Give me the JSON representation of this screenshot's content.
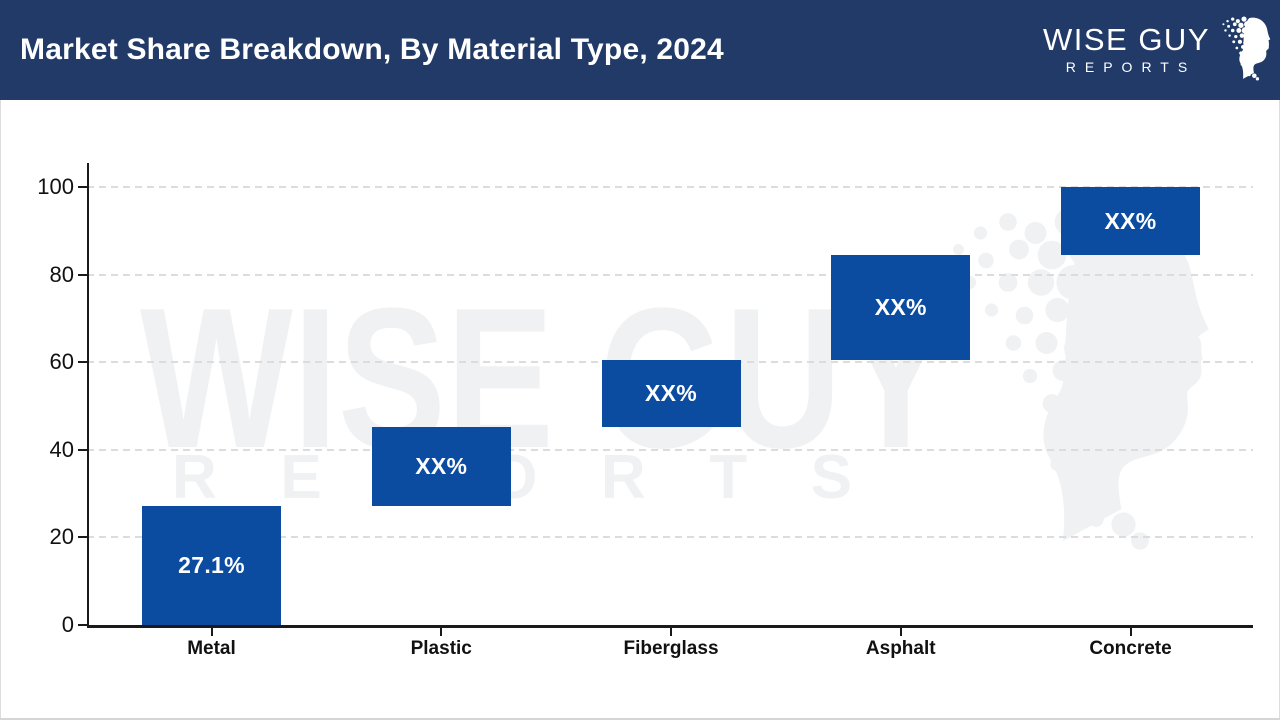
{
  "header": {
    "title": "Market Share Breakdown, By Material Type, 2024",
    "logo": {
      "line1": "WISE GUY",
      "line2": "REPORTS"
    }
  },
  "watermark": {
    "line1": "WISE GUY",
    "line2": "REPORTS"
  },
  "chart_data": {
    "type": "bar",
    "subtype": "floating-waterfall",
    "title": "Market Share Breakdown, By Material Type, 2024",
    "categories": [
      "Metal",
      "Plastic",
      "Fiberglass",
      "Asphalt",
      "Concrete"
    ],
    "segments": [
      {
        "category": "Metal",
        "start": 0,
        "end": 27.1,
        "label": "27.1%"
      },
      {
        "category": "Plastic",
        "start": 27.1,
        "end": 45.1,
        "label": "XX%"
      },
      {
        "category": "Fiberglass",
        "start": 45.1,
        "end": 60.4,
        "label": "XX%"
      },
      {
        "category": "Asphalt",
        "start": 60.4,
        "end": 84.4,
        "label": "XX%"
      },
      {
        "category": "Concrete",
        "start": 84.4,
        "end": 100,
        "label": "XX%"
      }
    ],
    "xlabel": "",
    "ylabel": "",
    "ylim": [
      0,
      100
    ],
    "yticks": [
      0,
      20,
      40,
      60,
      80,
      100
    ],
    "grid": "horizontal-dashed",
    "legend": "none",
    "colors": {
      "bar": "#0b4ca1",
      "bar_label": "#ffffff",
      "header_background": "#213a67",
      "header_text": "#ffffff",
      "axis": "#1a1a1a",
      "gridline": "#dcdcdc",
      "watermark": "#f0f1f3",
      "background": "#ffffff"
    }
  }
}
